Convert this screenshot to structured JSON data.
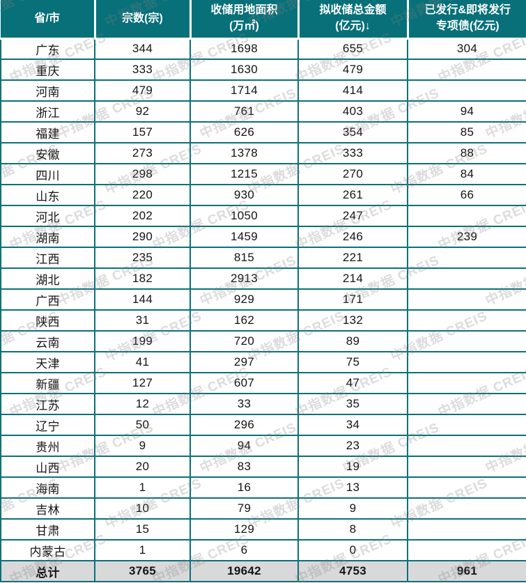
{
  "colors": {
    "header_bg": "#077079",
    "border": "#0a7079",
    "total_bg": "#d9d9d9",
    "watermark": "rgba(128,128,128,0.28)"
  },
  "watermark_text": "中指数据 CREIS",
  "table": {
    "columns": [
      {
        "label": "省/市",
        "line2": ""
      },
      {
        "label": "宗数(宗)",
        "line2": ""
      },
      {
        "label": "收储用地面积",
        "line2": "(万㎡)"
      },
      {
        "label": "拟收储总金额",
        "line2": "(亿元)",
        "sort_icon": "↓"
      },
      {
        "label": "已发行&即将发行",
        "line2": "专项债(亿元)"
      }
    ],
    "rows": [
      {
        "province": "广东",
        "count": "344",
        "area": "1698",
        "amount": "655",
        "bond": "304"
      },
      {
        "province": "重庆",
        "count": "333",
        "area": "1630",
        "amount": "479",
        "bond": ""
      },
      {
        "province": "河南",
        "count": "479",
        "area": "1714",
        "amount": "414",
        "bond": ""
      },
      {
        "province": "浙江",
        "count": "92",
        "area": "761",
        "amount": "403",
        "bond": "94"
      },
      {
        "province": "福建",
        "count": "157",
        "area": "626",
        "amount": "354",
        "bond": "85"
      },
      {
        "province": "安徽",
        "count": "273",
        "area": "1378",
        "amount": "333",
        "bond": "88"
      },
      {
        "province": "四川",
        "count": "298",
        "area": "1215",
        "amount": "270",
        "bond": "84"
      },
      {
        "province": "山东",
        "count": "220",
        "area": "930",
        "amount": "261",
        "bond": "66"
      },
      {
        "province": "河北",
        "count": "202",
        "area": "1050",
        "amount": "247",
        "bond": ""
      },
      {
        "province": "湖南",
        "count": "290",
        "area": "1459",
        "amount": "246",
        "bond": "239"
      },
      {
        "province": "江西",
        "count": "235",
        "area": "815",
        "amount": "221",
        "bond": ""
      },
      {
        "province": "湖北",
        "count": "182",
        "area": "2913",
        "amount": "214",
        "bond": ""
      },
      {
        "province": "广西",
        "count": "144",
        "area": "929",
        "amount": "171",
        "bond": ""
      },
      {
        "province": "陕西",
        "count": "31",
        "area": "162",
        "amount": "132",
        "bond": ""
      },
      {
        "province": "云南",
        "count": "199",
        "area": "720",
        "amount": "89",
        "bond": ""
      },
      {
        "province": "天津",
        "count": "41",
        "area": "297",
        "amount": "75",
        "bond": ""
      },
      {
        "province": "新疆",
        "count": "127",
        "area": "607",
        "amount": "47",
        "bond": ""
      },
      {
        "province": "江苏",
        "count": "12",
        "area": "33",
        "amount": "35",
        "bond": ""
      },
      {
        "province": "辽宁",
        "count": "50",
        "area": "296",
        "amount": "34",
        "bond": ""
      },
      {
        "province": "贵州",
        "count": "9",
        "area": "94",
        "amount": "23",
        "bond": ""
      },
      {
        "province": "山西",
        "count": "20",
        "area": "83",
        "amount": "19",
        "bond": ""
      },
      {
        "province": "海南",
        "count": "1",
        "area": "16",
        "amount": "13",
        "bond": ""
      },
      {
        "province": "吉林",
        "count": "10",
        "area": "79",
        "amount": "9",
        "bond": ""
      },
      {
        "province": "甘肃",
        "count": "15",
        "area": "129",
        "amount": "8",
        "bond": ""
      },
      {
        "province": "内蒙古",
        "count": "1",
        "area": "6",
        "amount": "0",
        "bond": ""
      }
    ],
    "total_row": {
      "province": "总计",
      "count": "3765",
      "area": "19642",
      "amount": "4753",
      "bond": "961"
    }
  }
}
